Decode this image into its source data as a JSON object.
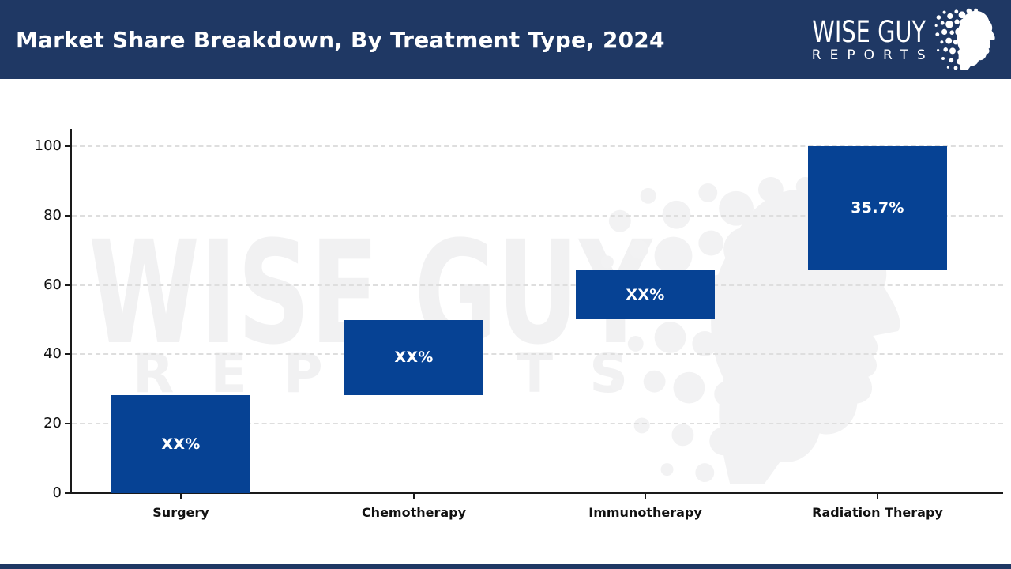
{
  "header": {
    "title": "Market Share Breakdown, By Treatment Type, 2024",
    "logo": {
      "line1": "WISE GUY",
      "line2": "REPORTS"
    }
  },
  "watermark": {
    "line1": "WISE GUY",
    "line2": "REPORTS"
  },
  "chart_data": {
    "type": "bar",
    "subtype": "waterfall-floating-segments",
    "title": "Market Share Breakdown, By Treatment Type, 2024",
    "categories": [
      "Surgery",
      "Chemotherapy",
      "Immunotherapy",
      "Radiation Therapy"
    ],
    "bars": [
      {
        "category": "Surgery",
        "start": 0,
        "end": 28.2,
        "label": "XX%"
      },
      {
        "category": "Chemotherapy",
        "start": 28.2,
        "end": 50,
        "label": "XX%"
      },
      {
        "category": "Immunotherapy",
        "start": 50,
        "end": 64.3,
        "label": "XX%"
      },
      {
        "category": "Radiation Therapy",
        "start": 64.3,
        "end": 100,
        "label": "35.7%"
      }
    ],
    "ylim": [
      0,
      100
    ],
    "yticks": [
      0,
      20,
      40,
      60,
      80,
      100
    ],
    "xlabel": "",
    "ylabel": "",
    "grid": "horizontal-dashed",
    "legend": "none",
    "colors": {
      "bar": "#064294",
      "bar_label": "#ffffff",
      "grid": "#dedede",
      "axis": "#1a1a1a",
      "header_bg": "#1f3864",
      "watermark": "#f1f1f2"
    }
  }
}
